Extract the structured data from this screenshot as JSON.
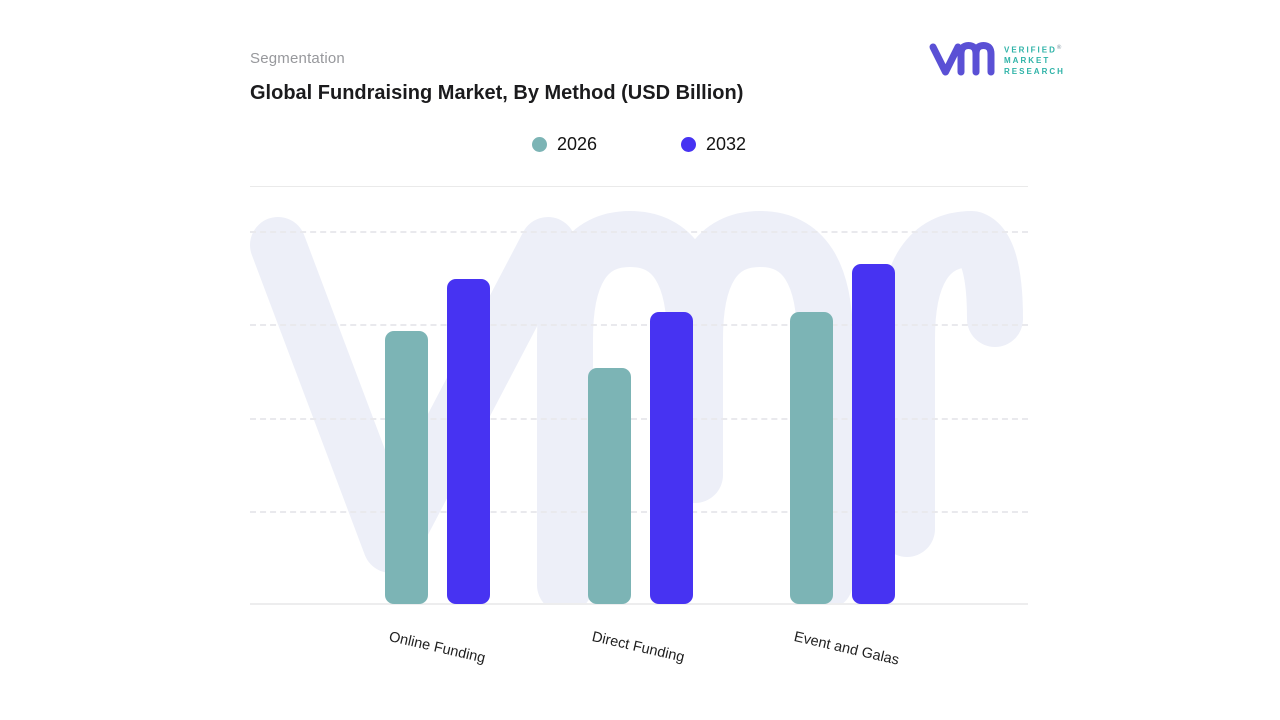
{
  "header": {
    "eyebrow": "Segmentation",
    "title": "Global Fundraising Market, By Method (USD Billion)"
  },
  "logo": {
    "lines": [
      "VERIFIED",
      "MARKET",
      "RESEARCH"
    ],
    "registered_symbol": "®",
    "mark_color": "#5a50d5",
    "text_color": "#2fb3a8"
  },
  "legend": [
    {
      "label": "2026",
      "color": "#7cb4b5"
    },
    {
      "label": "2032",
      "color": "#4733f2"
    }
  ],
  "chart_data": {
    "type": "bar",
    "title": "Global Fundraising Market, By Method (USD Billion)",
    "categories": [
      "Online Funding",
      "Direct Funding",
      "Event and Galas"
    ],
    "series": [
      {
        "name": "2026",
        "color": "#7cb4b5",
        "values": [
          73,
          63,
          78
        ]
      },
      {
        "name": "2032",
        "color": "#4733f2",
        "values": [
          87,
          78,
          91
        ]
      }
    ],
    "xlabel": "",
    "ylabel": "",
    "ylim": [
      0,
      100
    ],
    "units": "relative height, % of top gridline (no numeric axis labels shown)",
    "grid": "horizontal-dashed",
    "y_axis_tick_labels_visible": false,
    "legend_position": "top-center",
    "bar_corner_radius": 9
  }
}
